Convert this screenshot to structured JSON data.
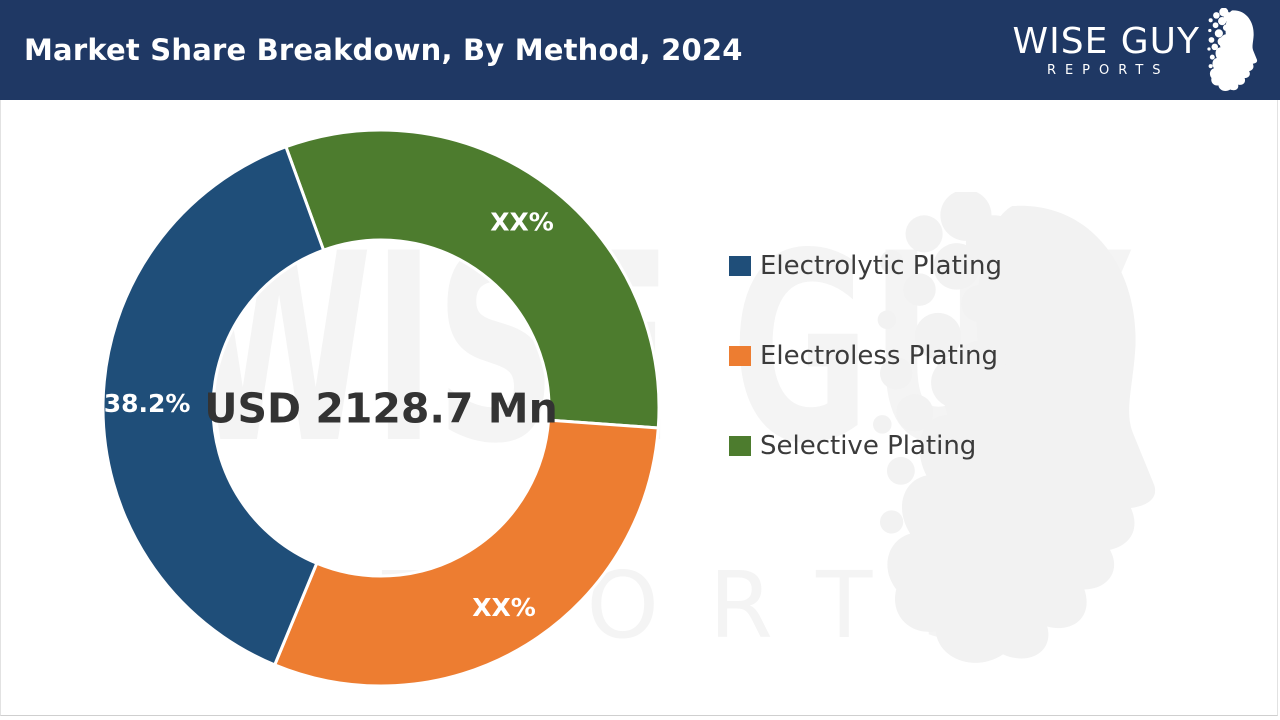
{
  "header": {
    "title": "Market Share Breakdown, By Method, 2024",
    "logo": {
      "name": "WISE GUY",
      "tagline": "REPORTS"
    }
  },
  "watermark": {
    "brand": "WISE GUY",
    "tagline": "REPORTS"
  },
  "chart_data": {
    "type": "pie",
    "subtype": "donut",
    "title": "Market Share Breakdown, By Method, 2024",
    "center_label": "USD 2128.7 Mn",
    "direction": "clockwise",
    "start_angle_clockwise_from_top_deg": -20,
    "segments": [
      {
        "name": "Selective Plating",
        "data_label": "XX%",
        "arc_percent_estimate": 31.7,
        "color": "#4D7C2E"
      },
      {
        "name": "Electroless Plating",
        "data_label": "XX%",
        "arc_percent_estimate": 30.1,
        "color": "#ED7D31"
      },
      {
        "name": "Electrolytic Plating",
        "data_label": "38.2%",
        "arc_percent_estimate": 38.2,
        "color": "#1F4E79"
      }
    ],
    "legend_position": "right",
    "legend": [
      {
        "label": "Electrolytic Plating",
        "color": "#1F4E79"
      },
      {
        "label": "Electroless Plating",
        "color": "#ED7D31"
      },
      {
        "label": "Selective Plating",
        "color": "#4D7C2E"
      }
    ]
  },
  "colors": {
    "header_bg": "#1F3864",
    "header_text": "#FFFFFF",
    "content_bg": "#FFFFFF",
    "border": "#D8D8D8",
    "center_text": "#333333",
    "segment_label_text": "#FFFFFF",
    "legend_text": "#3B3B3B",
    "watermark": "#F2F2F2"
  }
}
